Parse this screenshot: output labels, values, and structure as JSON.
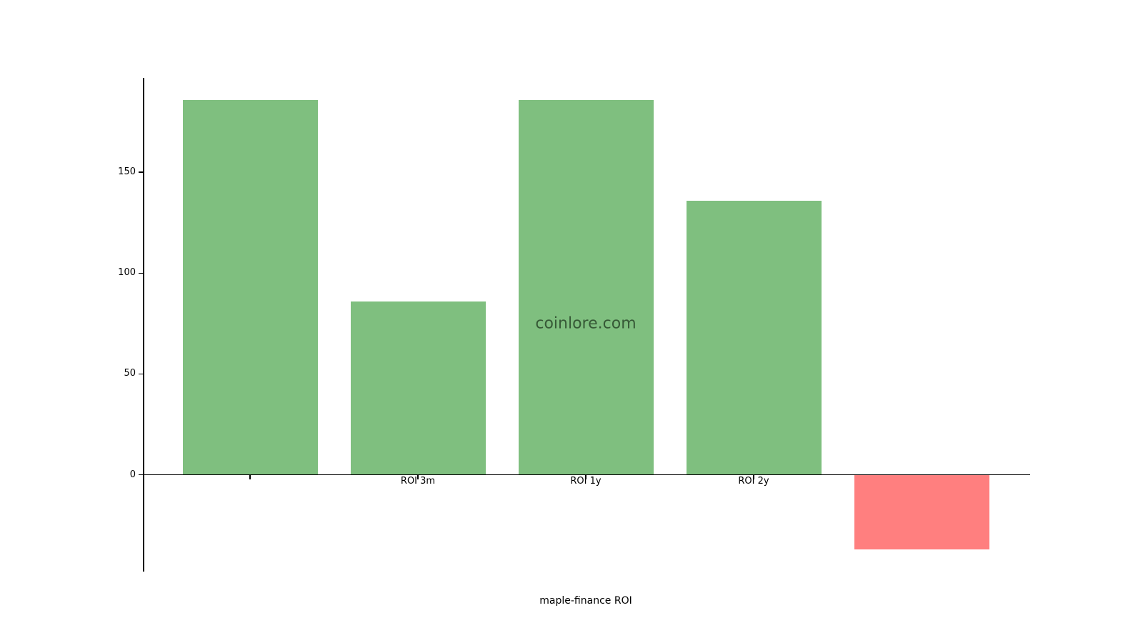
{
  "chart_data": {
    "type": "bar",
    "title": "maple-finance ROI",
    "watermark": "coinlore.com",
    "categories": [
      "",
      "ROI 3m",
      "ROI 1y",
      "ROI 2y",
      ""
    ],
    "values": [
      186,
      86,
      186,
      136,
      -37
    ],
    "series": [
      {
        "name": "maple-finance ROI",
        "values": [
          186,
          86,
          186,
          136,
          -37
        ]
      }
    ],
    "positive_color": "#7fbf7f",
    "negative_color": "#ff7f7f",
    "axis_color": "#000000",
    "text_color": "#000000",
    "yticks": [
      0,
      50,
      100,
      150
    ],
    "ylim": [
      -48,
      197
    ],
    "xlabel": "",
    "ylabel": "",
    "grid": false,
    "legend_position": "none",
    "baseline": 0
  }
}
